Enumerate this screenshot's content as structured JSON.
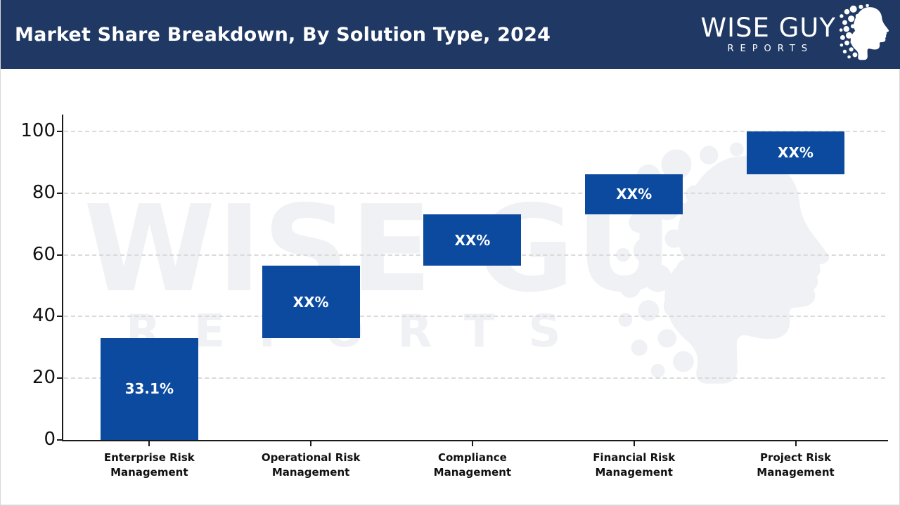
{
  "header": {
    "title": "Market Share Breakdown, By Solution Type, 2024",
    "logo": {
      "line1": "WISE GUY",
      "line2": "REPORTS"
    },
    "bg_color": "#1f3864"
  },
  "watermark": {
    "line1": "WISE GUY",
    "line2": "REPORTS"
  },
  "chart_data": {
    "type": "bar",
    "subtype": "waterfall",
    "title": "Market Share Breakdown, By Solution Type, 2024",
    "categories": [
      "Enterprise Risk Management",
      "Operational Risk Management",
      "Compliance Management",
      "Financial Risk Management",
      "Project Risk Management"
    ],
    "category_lines": [
      [
        "Enterprise Risk",
        "Management"
      ],
      [
        "Operational Risk",
        "Management"
      ],
      [
        "Compliance",
        "Management"
      ],
      [
        "Financial Risk",
        "Management"
      ],
      [
        "Project Risk",
        "Management"
      ]
    ],
    "segments": [
      {
        "label": "33.1%",
        "start": 0,
        "end": 33.1
      },
      {
        "label": "XX%",
        "start": 33.1,
        "end": 56.4
      },
      {
        "label": "XX%",
        "start": 56.4,
        "end": 73.2
      },
      {
        "label": "XX%",
        "start": 73.2,
        "end": 86.2
      },
      {
        "label": "XX%",
        "start": 86.2,
        "end": 100
      }
    ],
    "xlabel": "",
    "ylabel": "",
    "ylim": [
      0,
      100
    ],
    "yticks": [
      0,
      20,
      40,
      60,
      80,
      100
    ],
    "grid": "horizontal-dashed",
    "legend": "none",
    "bar_color": "#0b4a9e",
    "bar_label_color": "#ffffff"
  }
}
